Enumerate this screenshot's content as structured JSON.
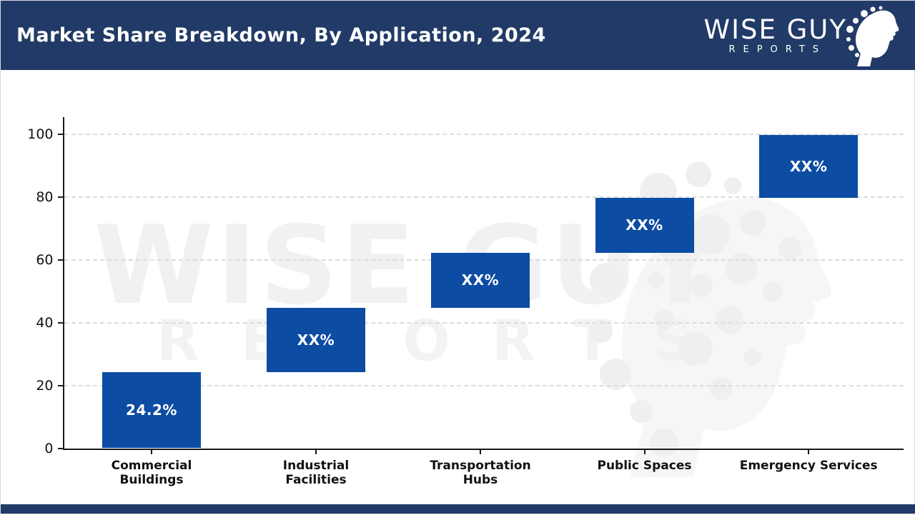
{
  "header": {
    "title": "Market Share Breakdown, By Application, 2024",
    "logo": {
      "line1": "WISE GUY",
      "line2": "REPORTS"
    }
  },
  "watermark": {
    "line1": "WISE GUY",
    "line2": "REPORTS"
  },
  "colors": {
    "header_bg": "#213a67",
    "footer_bg": "#213a67",
    "bar_blue": "#0c4ca3",
    "grid_gray": "#dcdcdc",
    "axis_black": "#1a1a1a"
  },
  "chart_data": {
    "type": "bar",
    "subtype": "waterfall",
    "title": "Market Share Breakdown, By Application, 2024",
    "categories": [
      [
        "Commercial",
        "Buildings"
      ],
      [
        "Industrial",
        "Facilities"
      ],
      [
        "Transportation",
        "Hubs"
      ],
      [
        "Public Spaces"
      ],
      [
        "Emergency Services"
      ]
    ],
    "segments": [
      {
        "label": "24.2%",
        "start": 0,
        "end": 24.2
      },
      {
        "label": "XX%",
        "start": 24.2,
        "end": 44.8
      },
      {
        "label": "XX%",
        "start": 44.8,
        "end": 62.3
      },
      {
        "label": "XX%",
        "start": 62.3,
        "end": 79.7
      },
      {
        "label": "XX%",
        "start": 79.7,
        "end": 99.8
      }
    ],
    "yticks": [
      0,
      20,
      40,
      60,
      80,
      100
    ],
    "ylim": [
      0,
      105
    ],
    "xlabel": "",
    "ylabel": "",
    "legend": "none",
    "grid": "horizontal-dashed"
  }
}
